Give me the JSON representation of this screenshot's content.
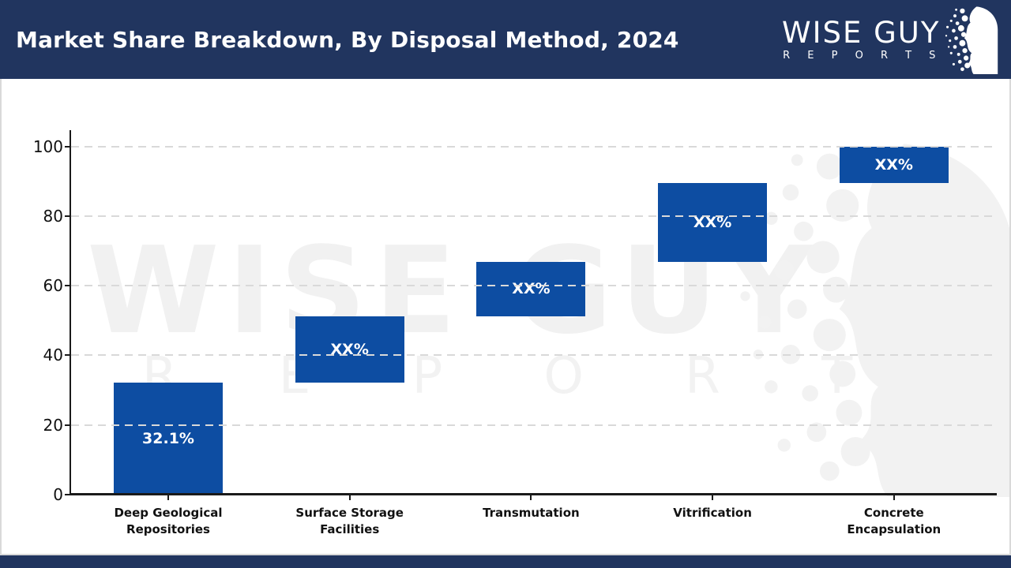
{
  "header": {
    "title": "Market Share Breakdown, By Disposal Method, 2024",
    "logo": {
      "wordmark": "WISE GUY",
      "subtext": "R E P O R T S"
    }
  },
  "watermark": {
    "wordmark": "WISE GUY",
    "subtext": "R E P O R T S"
  },
  "colors": {
    "navy": "#21355F",
    "bar_blue": "#0D4DA2",
    "grid_gray": "#D9D9D9",
    "axis_black": "#1A1A1A",
    "watermark_gray": "#F2F2F2",
    "data_label_white": "#FFFFFF"
  },
  "chart_data": {
    "type": "bar",
    "subtype": "waterfall",
    "title": "Market Share Breakdown, By Disposal Method, 2024",
    "categories": [
      "Deep Geological Repositories",
      "Surface Storage Facilities",
      "Transmutation",
      "Vitrification",
      "Concrete Encapsulation"
    ],
    "category_lines": [
      [
        "Deep Geological",
        "Repositories"
      ],
      [
        "Surface Storage",
        "Facilities"
      ],
      [
        "Transmutation"
      ],
      [
        "Vitrification"
      ],
      [
        "Concrete",
        "Encapsulation"
      ]
    ],
    "segments": [
      {
        "category": "Deep Geological Repositories",
        "start": 0,
        "end": 32.1,
        "label": "32.1%"
      },
      {
        "category": "Surface Storage Facilities",
        "start": 32.1,
        "end": 51.2,
        "label": "XX%"
      },
      {
        "category": "Transmutation",
        "start": 51.2,
        "end": 66.8,
        "label": "XX%"
      },
      {
        "category": "Vitrification",
        "start": 66.8,
        "end": 89.4,
        "label": "XX%"
      },
      {
        "category": "Concrete Encapsulation",
        "start": 89.4,
        "end": 100,
        "label": "XX%"
      }
    ],
    "yticks": [
      0,
      20,
      40,
      60,
      80,
      100
    ],
    "ylim": [
      0,
      100
    ],
    "xlabel": "",
    "ylabel": "",
    "grid": "horizontal-dashed",
    "legend": "none"
  }
}
